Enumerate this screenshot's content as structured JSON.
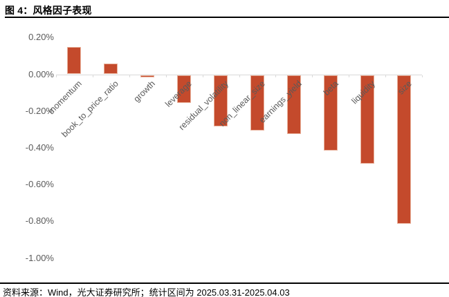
{
  "header": {
    "title": "图 4：风格因子表现"
  },
  "footer": {
    "source": "资料来源：Wind，光大证券研究所；统计区间为 2025.03.31-2025.04.03"
  },
  "chart_data": {
    "type": "bar",
    "title": "风格因子表现",
    "categories": [
      "momentum",
      "book_to_price_ratio",
      "growth",
      "leverage",
      "residual_volatility",
      "non_linear_size",
      "earnings_yield",
      "beta",
      "liquidity",
      "size"
    ],
    "values": [
      0.15,
      0.06,
      -0.01,
      -0.15,
      -0.28,
      -0.3,
      -0.32,
      -0.41,
      -0.48,
      -0.81
    ],
    "unit": "%",
    "xlabel": "",
    "ylabel": "",
    "ylim": [
      -1.0,
      0.2
    ],
    "ytick_step": 0.2,
    "ytick_labels": [
      "0.20%",
      "0.00%",
      "-0.20%",
      "-0.40%",
      "-0.60%",
      "-0.80%",
      "-1.00%"
    ],
    "grid": false,
    "legend": "none",
    "bar_color": "#C44A2C",
    "bar_border_color": "#E9B29C",
    "axis_color": "#D9D9D9",
    "tick_label_color": "#595959"
  }
}
